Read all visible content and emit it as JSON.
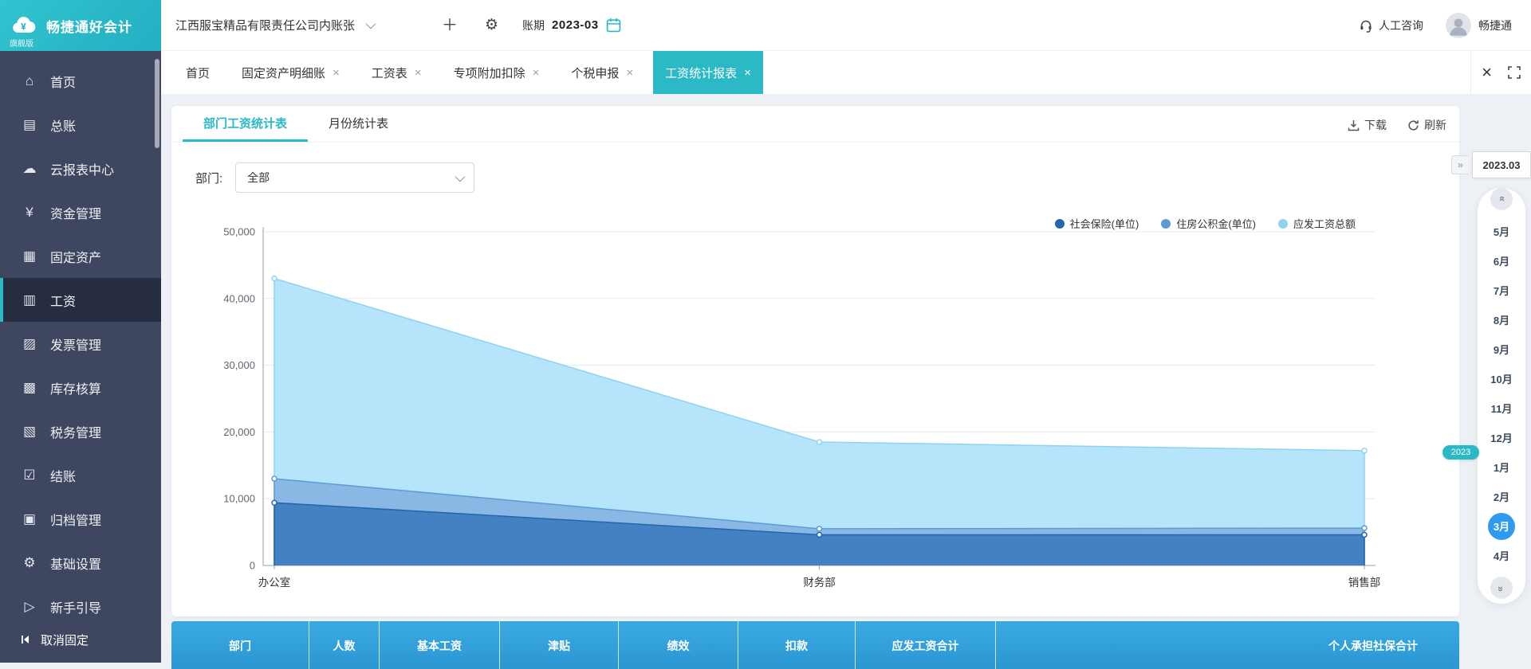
{
  "colors": {
    "teal": "#2bb9c6",
    "sidebar": "#3e4660",
    "sidebar-active": "#272d41",
    "th-top": "#3aa9e1",
    "th-bottom": "#2b97d3",
    "month-active": "#2e9bf0",
    "page-bg": "#edf0f5"
  },
  "app": {
    "brand": "畅捷通好会计",
    "edition": "旗舰版",
    "company": "江西服宝精品有限责任公司内账张",
    "period_label": "账期",
    "period_value": "2023-03",
    "support": "人工咨询",
    "user": "畅捷通"
  },
  "sidebar": {
    "items": [
      {
        "id": "home",
        "label": "首页",
        "icon": "home-icon",
        "active": false
      },
      {
        "id": "general-ledger",
        "label": "总账",
        "icon": "ledger-icon",
        "active": false
      },
      {
        "id": "cloud-reports",
        "label": "云报表中心",
        "icon": "cloud-report-icon",
        "active": false
      },
      {
        "id": "funds",
        "label": "资金管理",
        "icon": "funds-icon",
        "active": false
      },
      {
        "id": "fixed-assets",
        "label": "固定资产",
        "icon": "fixed-assets-icon",
        "active": false
      },
      {
        "id": "salary",
        "label": "工资",
        "icon": "salary-icon",
        "active": true
      },
      {
        "id": "invoice",
        "label": "发票管理",
        "icon": "invoice-icon",
        "active": false
      },
      {
        "id": "inventory",
        "label": "库存核算",
        "icon": "inventory-icon",
        "active": false
      },
      {
        "id": "tax",
        "label": "税务管理",
        "icon": "tax-icon",
        "active": false
      },
      {
        "id": "closing",
        "label": "结账",
        "icon": "closing-icon",
        "active": false
      },
      {
        "id": "archive",
        "label": "归档管理",
        "icon": "archive-icon",
        "active": false
      },
      {
        "id": "settings",
        "label": "基础设置",
        "icon": "settings-icon",
        "active": false
      },
      {
        "id": "guide",
        "label": "新手引导",
        "icon": "guide-icon",
        "active": false
      }
    ],
    "pin_label": "取消固定"
  },
  "tabs": [
    {
      "label": "首页",
      "closable": false,
      "active": false
    },
    {
      "label": "固定资产明细账",
      "closable": true,
      "active": false
    },
    {
      "label": "工资表",
      "closable": true,
      "active": false
    },
    {
      "label": "专项附加扣除",
      "closable": true,
      "active": false
    },
    {
      "label": "个税申报",
      "closable": true,
      "active": false
    },
    {
      "label": "工资统计报表",
      "closable": true,
      "active": true
    }
  ],
  "report": {
    "subtabs": [
      {
        "label": "部门工资统计表",
        "active": true
      },
      {
        "label": "月份统计表",
        "active": false
      }
    ],
    "download_label": "下载",
    "refresh_label": "刷新",
    "filter_label": "部门:",
    "filter_value": "全部"
  },
  "chart_data": {
    "type": "area",
    "title": "",
    "xlabel": "",
    "ylabel": "",
    "categories": [
      "办公室",
      "财务部",
      "销售部"
    ],
    "series": [
      {
        "name": "社会保险(单位)",
        "color": "#2465ae",
        "fill": "#3d7cc0",
        "values": [
          9400,
          4600,
          4600
        ]
      },
      {
        "name": "住房公积金(单位)",
        "color": "#5b9bd5",
        "fill": "#85b4e2",
        "values": [
          13000,
          5500,
          5600
        ]
      },
      {
        "name": "应发工资总额",
        "color": "#8fd2f3",
        "fill": "#b0e2fa",
        "values": [
          43000,
          18500,
          17200
        ]
      }
    ],
    "ylim": [
      0,
      50000
    ],
    "yticks": [
      0,
      10000,
      20000,
      30000,
      40000,
      50000
    ],
    "legend_position": "top-right",
    "grid": true
  },
  "table": {
    "columns": [
      "部门",
      "人数",
      "基本工资",
      "津贴",
      "绩效",
      "扣款",
      "应发工资合计",
      "个人承担社保合计"
    ]
  },
  "month_panel": {
    "current": "2023.03",
    "year_badge": "2023",
    "months": [
      "5月",
      "6月",
      "7月",
      "8月",
      "9月",
      "10月",
      "11月",
      "12月",
      "1月",
      "2月",
      "3月",
      "4月"
    ],
    "active_month": "3月"
  }
}
